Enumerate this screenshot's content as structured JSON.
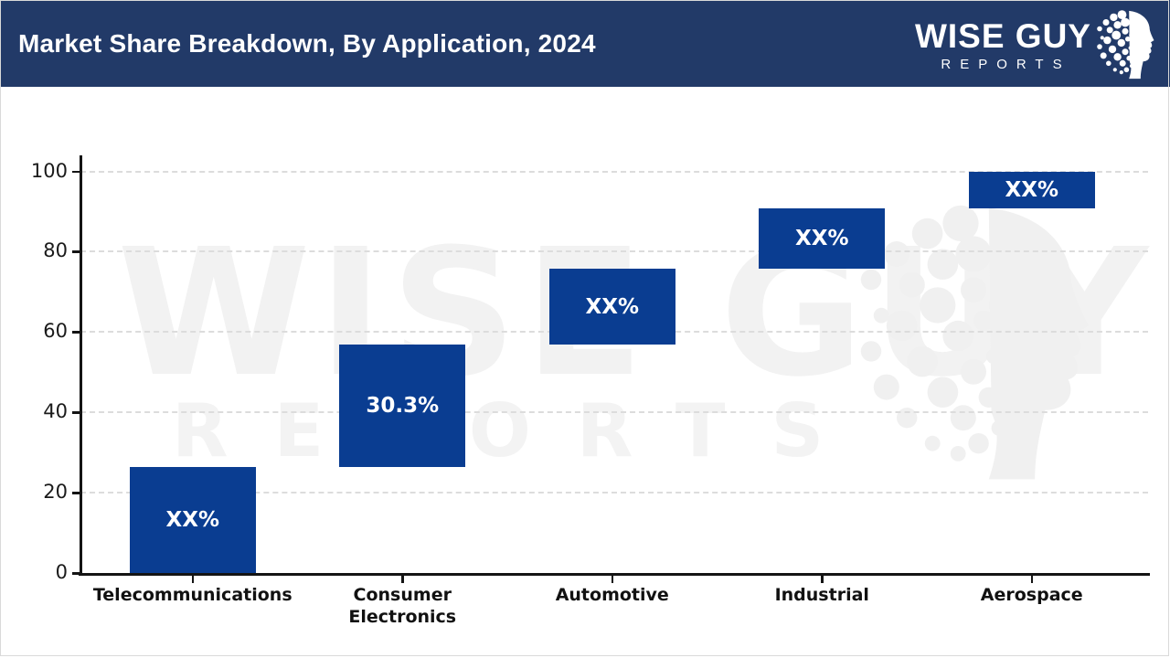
{
  "header": {
    "title": "Market Share Breakdown, By Application, 2024",
    "logo": {
      "primary": "WISE GUY",
      "secondary": "REPORTS"
    }
  },
  "watermark": {
    "primary": "WISE GUY",
    "secondary": "REPORTS"
  },
  "colors": {
    "header_bg": "#223A68",
    "bar": "#0A3D91",
    "grid": "#DCDCDC",
    "axis": "#141414",
    "bar_label": "#FFFFFF",
    "watermark": "#F2F2F2",
    "border": "#D9D9D9"
  },
  "chart_data": {
    "type": "bar",
    "variant": "waterfall",
    "title": "Market Share Breakdown, By Application, 2024",
    "xlabel": "",
    "ylabel": "",
    "categories": [
      "Telecommunications",
      "Consumer Electronics",
      "Automotive",
      "Industrial",
      "Aerospace"
    ],
    "bars": [
      {
        "category": "Telecommunications",
        "start": 0,
        "end": 26.5,
        "label": "XX%"
      },
      {
        "category": "Consumer Electronics",
        "start": 26.5,
        "end": 56.8,
        "label": "30.3%"
      },
      {
        "category": "Automotive",
        "start": 56.8,
        "end": 75.7,
        "label": "XX%"
      },
      {
        "category": "Industrial",
        "start": 75.7,
        "end": 90.8,
        "label": "XX%"
      },
      {
        "category": "Aerospace",
        "start": 90.8,
        "end": 100,
        "label": "XX%"
      }
    ],
    "yticks": [
      0,
      20,
      40,
      60,
      80,
      100
    ],
    "ylim": [
      0,
      104
    ],
    "grid": "horizontal-dashed",
    "legend": "none"
  }
}
